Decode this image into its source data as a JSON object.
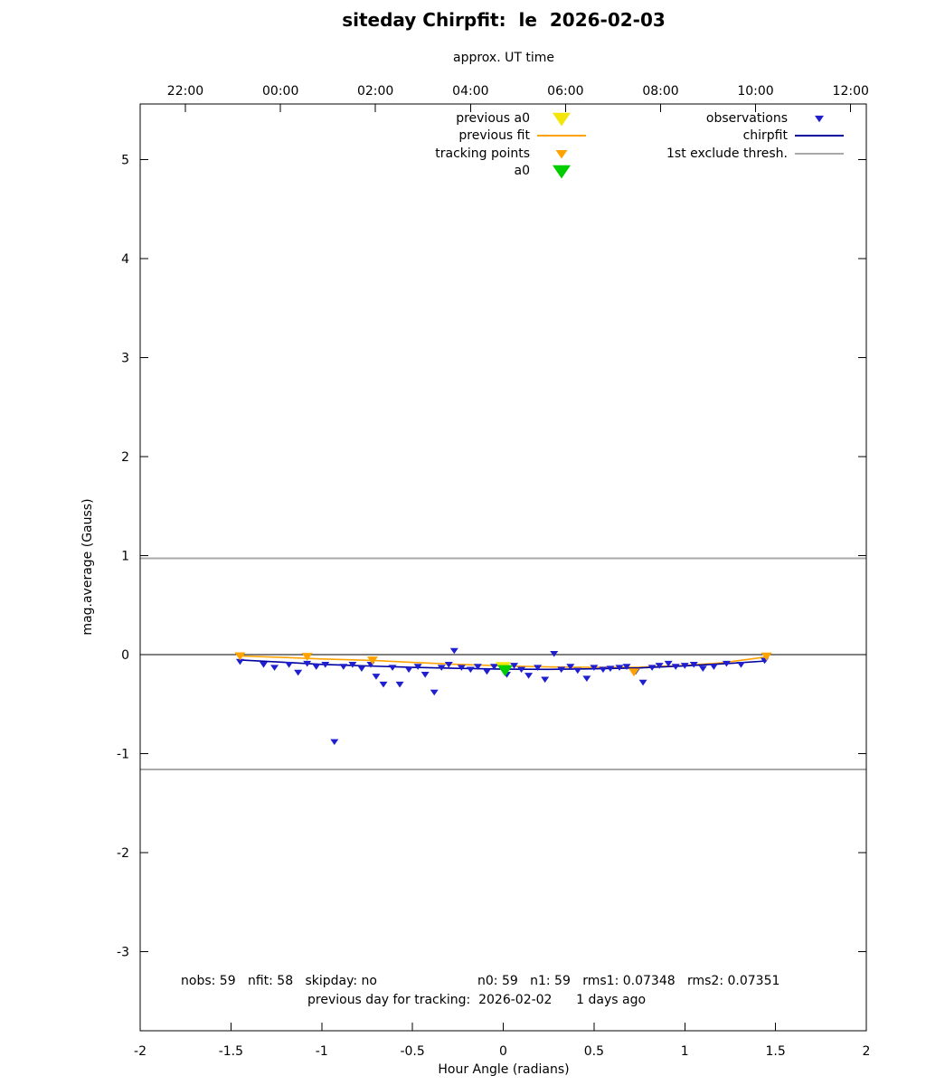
{
  "title": "siteday Chirpfit:  le  2026-02-03",
  "top_axis_label": "approx. UT time",
  "y_axis_label": "mag.average (Gauss)",
  "x_axis_label": "Hour Angle (radians)",
  "stats": {
    "line1_left": "nobs: 59   nfit: 58   skipday: no",
    "line1_right": "n0: 59   n1: 59   rms1: 0.07348   rms2: 0.07351",
    "line2": "previous day for tracking:  2026-02-02      1 days ago",
    "nobs": "59",
    "nfit": "58",
    "skipday": "no",
    "n0": "59",
    "n1": "59",
    "rms1": "0.07348",
    "rms2": "0.07351",
    "previous_day_for_tracking": "2026-02-02",
    "days_ago": "1 days ago"
  },
  "colors": {
    "observations": "#1f1fd0",
    "chirpfit": "#0000a0",
    "previous_fit": "#ffa300",
    "tracking_points": "#ffa300",
    "previous_a0": "#f2e60d",
    "a0": "#00cd00",
    "exclude_threshold": "#a9a9a9",
    "axis": "#000000",
    "background": "#ffffff"
  },
  "legend": {
    "left": [
      {
        "label": "previous a0",
        "marker": "triangle-large",
        "color": "previous_a0"
      },
      {
        "label": "previous fit",
        "marker": "line",
        "color": "previous_fit"
      },
      {
        "label": "tracking points",
        "marker": "triangle-medium",
        "color": "tracking_points"
      },
      {
        "label": "a0",
        "marker": "triangle-large",
        "color": "a0"
      }
    ],
    "right": [
      {
        "label": "observations",
        "marker": "triangle-small",
        "color": "observations"
      },
      {
        "label": "chirpfit",
        "marker": "line",
        "color": "chirpfit"
      },
      {
        "label": "1st exclude thresh.",
        "marker": "line",
        "color": "exclude_threshold"
      }
    ]
  },
  "chart_data": {
    "type": "scatter",
    "title": "siteday Chirpfit:  le  2026-02-03",
    "xlabel": "Hour Angle (radians)",
    "ylabel": "mag.average (Gauss)",
    "x2label": "approx. UT time",
    "xlim": [
      -2,
      2
    ],
    "ylim": [
      -3.8,
      5.56
    ],
    "grid": false,
    "legend_position": "top-inside",
    "x_ticks": [
      -2,
      -1.5,
      -1,
      -0.5,
      0,
      0.5,
      1,
      1.5,
      2
    ],
    "y_ticks": [
      -3,
      -2,
      -1,
      0,
      1,
      2,
      3,
      4,
      5
    ],
    "top_ticks": [
      {
        "label": "22:00",
        "x": -1.751
      },
      {
        "label": "00:00",
        "x": -1.227
      },
      {
        "label": "02:00",
        "x": -0.704
      },
      {
        "label": "04:00",
        "x": -0.18
      },
      {
        "label": "06:00",
        "x": 0.343
      },
      {
        "label": "08:00",
        "x": 0.867
      },
      {
        "label": "10:00",
        "x": 1.39
      },
      {
        "label": "12:00",
        "x": 1.914
      }
    ],
    "zero_line": 0,
    "exclude_thresholds": [
      0.97,
      -1.16
    ],
    "series": [
      {
        "name": "previous fit",
        "type": "line",
        "color": "previous_fit",
        "points": [
          [
            -1.45,
            -0.015
          ],
          [
            -1.2,
            -0.03
          ],
          [
            -1.0,
            -0.045
          ],
          [
            -0.72,
            -0.06
          ],
          [
            -0.5,
            -0.08
          ],
          [
            -0.25,
            -0.1
          ],
          [
            0,
            -0.115
          ],
          [
            0.25,
            -0.125
          ],
          [
            0.5,
            -0.13
          ],
          [
            0.75,
            -0.128
          ],
          [
            1.0,
            -0.11
          ],
          [
            1.2,
            -0.085
          ],
          [
            1.45,
            -0.025
          ]
        ]
      },
      {
        "name": "chirpfit",
        "type": "line",
        "color": "chirpfit",
        "points": [
          [
            -1.45,
            -0.055
          ],
          [
            -1.2,
            -0.08
          ],
          [
            -1.0,
            -0.1
          ],
          [
            -0.75,
            -0.115
          ],
          [
            -0.5,
            -0.13
          ],
          [
            -0.25,
            -0.14
          ],
          [
            0,
            -0.148
          ],
          [
            0.25,
            -0.15
          ],
          [
            0.5,
            -0.145
          ],
          [
            0.75,
            -0.135
          ],
          [
            1.0,
            -0.115
          ],
          [
            1.25,
            -0.09
          ],
          [
            1.45,
            -0.065
          ]
        ]
      },
      {
        "name": "observations",
        "type": "scatter",
        "marker": "triangle-small",
        "color": "observations",
        "points": [
          [
            -1.45,
            -0.07
          ],
          [
            -1.32,
            -0.1
          ],
          [
            -1.26,
            -0.13
          ],
          [
            -1.18,
            -0.1
          ],
          [
            -1.13,
            -0.18
          ],
          [
            -1.08,
            -0.09
          ],
          [
            -1.03,
            -0.12
          ],
          [
            -0.98,
            -0.1
          ],
          [
            -0.93,
            -0.88
          ],
          [
            -0.88,
            -0.12
          ],
          [
            -0.83,
            -0.1
          ],
          [
            -0.78,
            -0.14
          ],
          [
            -0.73,
            -0.1
          ],
          [
            -0.7,
            -0.22
          ],
          [
            -0.66,
            -0.3
          ],
          [
            -0.61,
            -0.13
          ],
          [
            -0.57,
            -0.3
          ],
          [
            -0.52,
            -0.15
          ],
          [
            -0.47,
            -0.12
          ],
          [
            -0.43,
            -0.2
          ],
          [
            -0.38,
            -0.38
          ],
          [
            -0.34,
            -0.13
          ],
          [
            -0.3,
            -0.1
          ],
          [
            -0.27,
            0.04
          ],
          [
            -0.23,
            -0.13
          ],
          [
            -0.18,
            -0.15
          ],
          [
            -0.14,
            -0.12
          ],
          [
            -0.09,
            -0.17
          ],
          [
            -0.05,
            -0.12
          ],
          [
            0.0,
            -0.13
          ],
          [
            0.02,
            -0.2
          ],
          [
            0.06,
            -0.11
          ],
          [
            0.1,
            -0.15
          ],
          [
            0.14,
            -0.21
          ],
          [
            0.19,
            -0.13
          ],
          [
            0.23,
            -0.25
          ],
          [
            0.28,
            0.01
          ],
          [
            0.32,
            -0.15
          ],
          [
            0.37,
            -0.12
          ],
          [
            0.41,
            -0.16
          ],
          [
            0.46,
            -0.24
          ],
          [
            0.5,
            -0.13
          ],
          [
            0.55,
            -0.15
          ],
          [
            0.59,
            -0.14
          ],
          [
            0.64,
            -0.13
          ],
          [
            0.68,
            -0.12
          ],
          [
            0.73,
            -0.17
          ],
          [
            0.77,
            -0.28
          ],
          [
            0.82,
            -0.13
          ],
          [
            0.86,
            -0.11
          ],
          [
            0.91,
            -0.09
          ],
          [
            0.95,
            -0.12
          ],
          [
            1.0,
            -0.11
          ],
          [
            1.05,
            -0.1
          ],
          [
            1.1,
            -0.14
          ],
          [
            1.16,
            -0.12
          ],
          [
            1.23,
            -0.09
          ],
          [
            1.31,
            -0.1
          ],
          [
            1.44,
            -0.06
          ]
        ]
      },
      {
        "name": "tracking points",
        "type": "scatter",
        "marker": "triangle-medium",
        "color": "tracking_points",
        "points": [
          [
            -1.45,
            -0.012
          ],
          [
            -1.08,
            -0.018
          ],
          [
            -0.72,
            -0.055
          ],
          [
            0.72,
            -0.175
          ],
          [
            1.45,
            -0.015
          ]
        ]
      },
      {
        "name": "previous a0",
        "type": "scatter",
        "marker": "triangle-large",
        "color": "previous_a0",
        "points": [
          [
            0.0,
            -0.125
          ]
        ]
      },
      {
        "name": "a0",
        "type": "scatter",
        "marker": "triangle-large",
        "color": "a0",
        "points": [
          [
            0.01,
            -0.155
          ]
        ]
      }
    ]
  }
}
